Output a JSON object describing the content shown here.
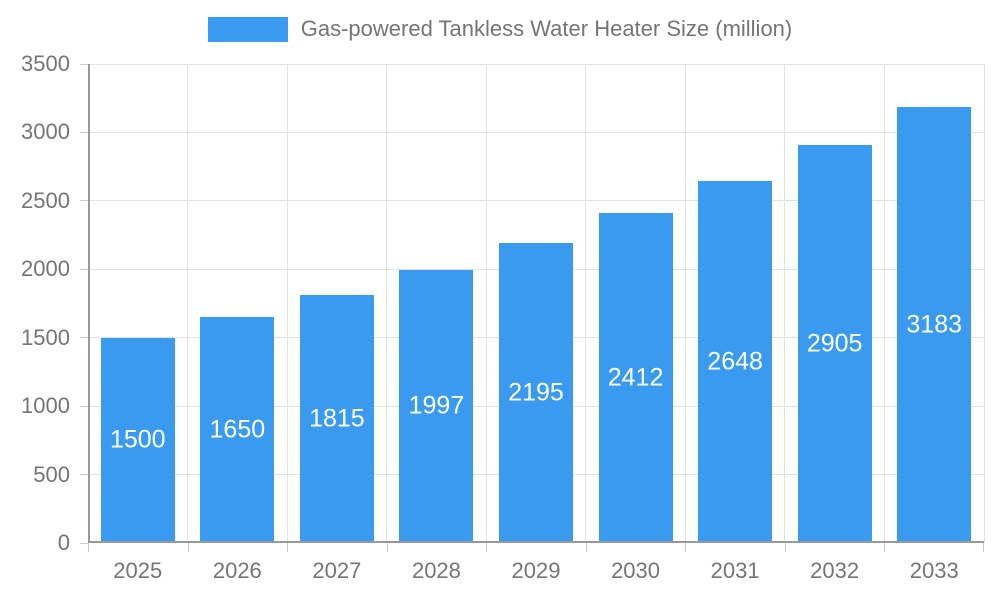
{
  "legend": {
    "label": "Gas-powered Tankless Water Heater Size (million)"
  },
  "chart_data": {
    "type": "bar",
    "title": "",
    "xlabel": "",
    "ylabel": "",
    "categories": [
      "2025",
      "2026",
      "2027",
      "2028",
      "2029",
      "2030",
      "2031",
      "2032",
      "2033"
    ],
    "series": [
      {
        "name": "Gas-powered Tankless Water Heater Size (million)",
        "values": [
          1500,
          1650,
          1815,
          1997,
          2195,
          2412,
          2648,
          2905,
          3183
        ]
      }
    ],
    "values": [
      1500,
      1650,
      1815,
      1997,
      2195,
      2412,
      2648,
      2905,
      3183
    ],
    "ylim": [
      0,
      3500
    ],
    "yticks": [
      0,
      500,
      1000,
      1500,
      2000,
      2500,
      3000,
      3500
    ],
    "grid": true,
    "legend_position": "top",
    "colors": {
      "bar": "#3a9af0",
      "value_label": "#ffffff",
      "axis_text": "#757575",
      "axis_line": "#999999",
      "gridline": "#e2e2e2",
      "tick": "#c9c9c9",
      "background": "#ffffff"
    }
  }
}
